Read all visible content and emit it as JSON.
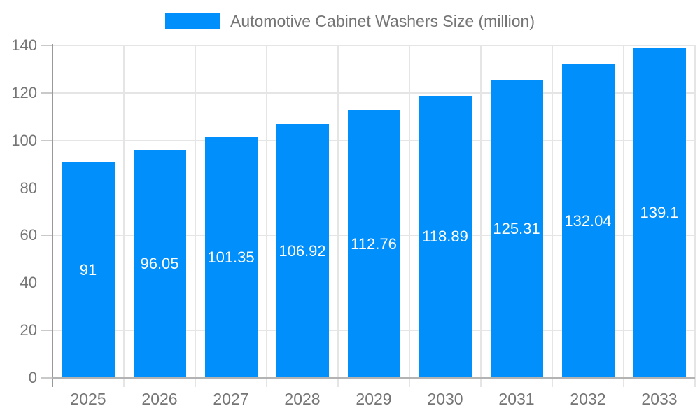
{
  "chart_data": {
    "type": "bar",
    "title": "",
    "legend_label": "Automotive Cabinet Washers Size (million)",
    "legend_position": "top",
    "categories": [
      "2025",
      "2026",
      "2027",
      "2028",
      "2029",
      "2030",
      "2031",
      "2032",
      "2033"
    ],
    "series": [
      {
        "name": "Automotive Cabinet Washers Size (million)",
        "values": [
          91,
          96.05,
          101.35,
          106.92,
          112.76,
          118.89,
          125.31,
          132.04,
          139.1
        ]
      }
    ],
    "value_labels": [
      "91",
      "96.05",
      "101.35",
      "106.92",
      "112.76",
      "118.89",
      "125.31",
      "132.04",
      "139.1"
    ],
    "xlabel": "",
    "ylabel": "",
    "ylim": [
      0,
      140
    ],
    "y_ticks": [
      0,
      20,
      40,
      60,
      80,
      100,
      120,
      140
    ],
    "grid": true,
    "colors": {
      "bar": "#008FFB",
      "value_label": "#ffffff",
      "axis_text": "#757575",
      "grid_line": "#e5e5e5",
      "tick_line": "#c9c9c9",
      "axis_line": "#b3b3b3",
      "y_axis_line": "#999999"
    }
  }
}
